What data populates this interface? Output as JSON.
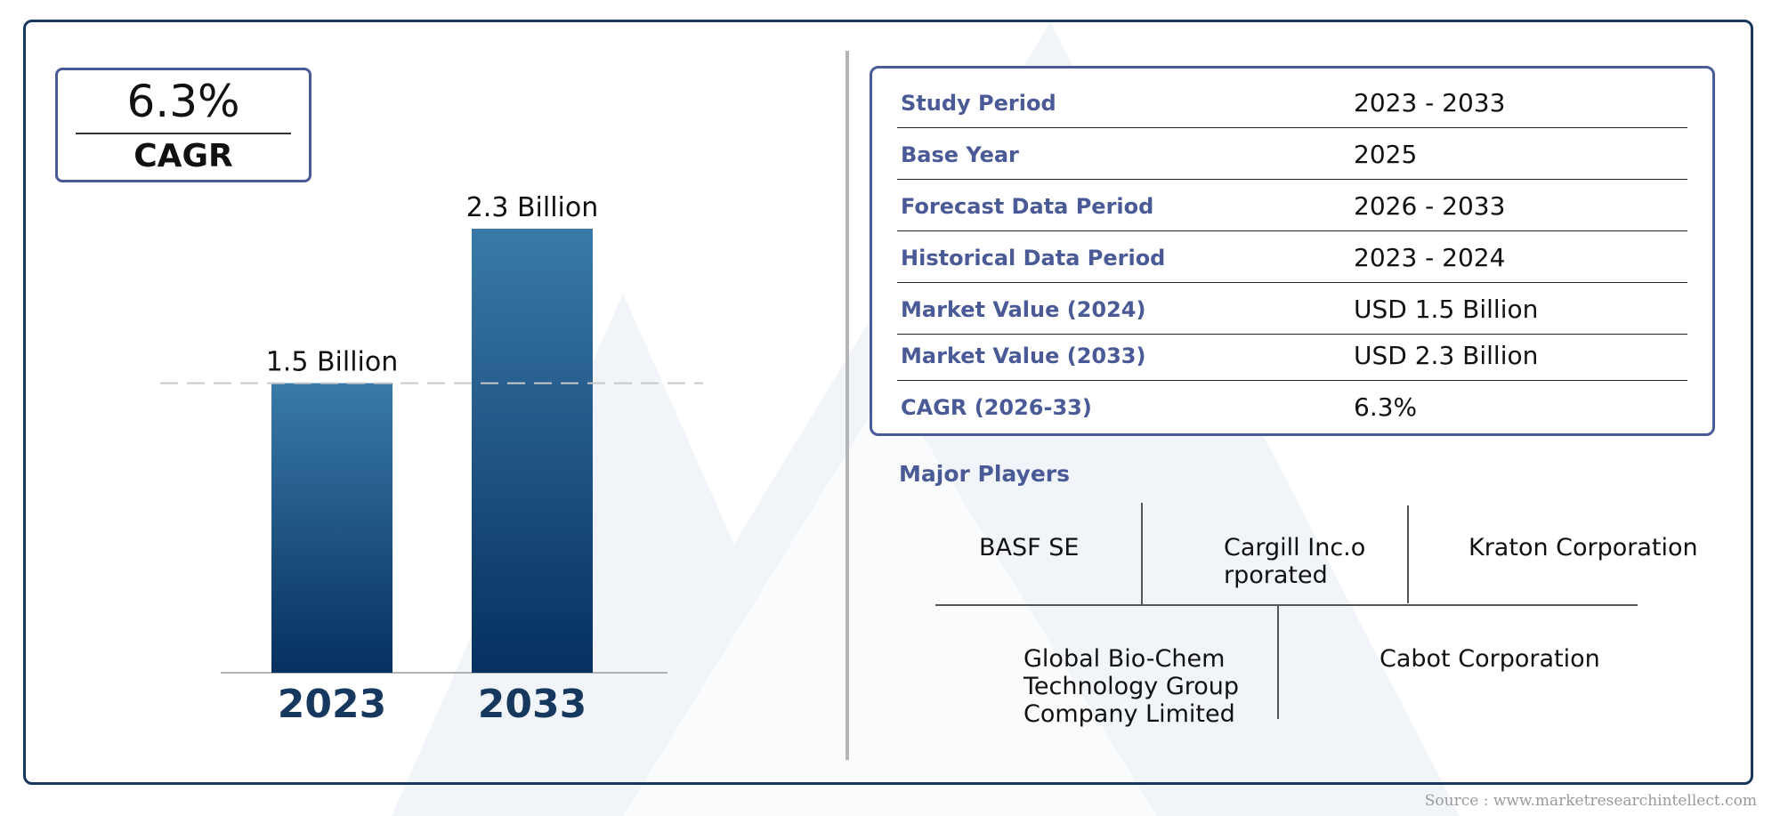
{
  "cagr_box": {
    "value": "6.3%",
    "label": "CAGR"
  },
  "chart_data": {
    "type": "bar",
    "categories": [
      "2023",
      "2033"
    ],
    "values": [
      1.5,
      2.3
    ],
    "data_labels": [
      "1.5 Billion",
      "2.3 Billion"
    ],
    "title": "",
    "xlabel": "",
    "ylabel": "",
    "ylim": [
      0,
      2.3
    ],
    "grid": false,
    "reference_line": 1.5,
    "colors": {
      "bar_top": "#3a7aa8",
      "bar_bottom": "#06305f",
      "category_text": "#17385e"
    }
  },
  "summary_table": {
    "rows": [
      {
        "label": "Study Period",
        "value": "2023 - 2033"
      },
      {
        "label": "Base Year",
        "value": "2025"
      },
      {
        "label": "Forecast Data Period",
        "value": "2026 - 2033"
      },
      {
        "label": "Historical Data Period",
        "value": "2023 - 2024"
      },
      {
        "label": "Market Value (2024)",
        "value": "USD 1.5 Billion"
      },
      {
        "label": "Market Value (2033)",
        "value": "USD 2.3 Billion"
      },
      {
        "label": "CAGR (2026-33)",
        "value": "6.3%"
      }
    ]
  },
  "players": {
    "title": "Major Players",
    "names": [
      "BASF SE",
      "Cargill Inc.orporated",
      "Kraton Corporation",
      "Global Bio-Chem Technology Group Company Limited",
      "Cabot Corporation"
    ]
  },
  "source": "Source : www.marketresearchintellect.com",
  "colors": {
    "frame": "#17385e",
    "accent": "#4a5a96"
  }
}
